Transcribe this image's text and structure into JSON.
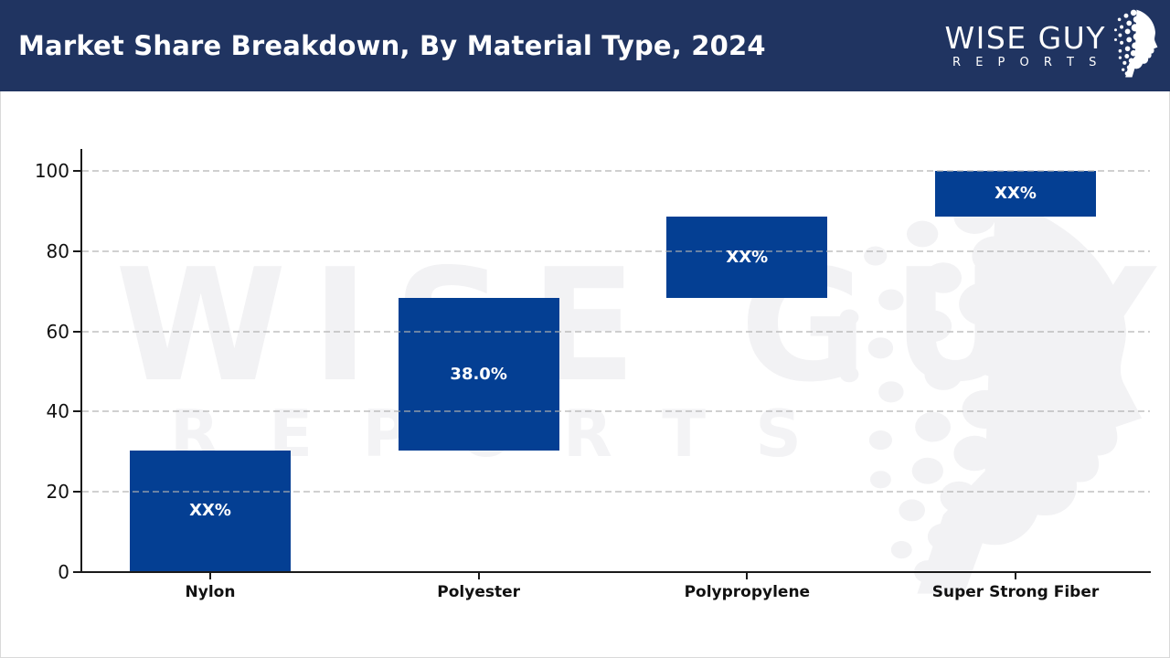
{
  "page": {
    "background": "#ffffff",
    "border_color": "#d9d9d9"
  },
  "header": {
    "bg_color": "#203461",
    "title": "Market Share Breakdown, By Material Type, 2024",
    "logo": {
      "name": "WISE GUY",
      "sub": "R E P O R T S"
    }
  },
  "watermark": {
    "line1": "WISE GUY",
    "line2": "R E P O R T S",
    "color": "#f2f2f4"
  },
  "chart_data": {
    "type": "bar",
    "subtype": "waterfall",
    "title": "Market Share Breakdown, By Material Type, 2024",
    "units": "%",
    "categories": [
      "Nylon",
      "Polyester",
      "Polypropylene",
      "Super Strong Fiber"
    ],
    "segments": [
      {
        "category": "Nylon",
        "start": 0,
        "end": 30.3,
        "increment": 30.3,
        "label": "XX%"
      },
      {
        "category": "Polyester",
        "start": 30.3,
        "end": 68.3,
        "increment": 38.0,
        "label": "38.0%"
      },
      {
        "category": "Polypropylene",
        "start": 68.3,
        "end": 88.5,
        "increment": 20.2,
        "label": "XX%"
      },
      {
        "category": "Super Strong Fiber",
        "start": 88.5,
        "end": 100,
        "increment": 11.5,
        "label": "XX%"
      }
    ],
    "yticks": [
      0,
      20,
      40,
      60,
      80,
      100
    ],
    "ylim": [
      0,
      105
    ],
    "grid": true,
    "grid_style": "dashed",
    "bar_color": "#043f93",
    "bar_label_color": "#ffffff",
    "axis_color": "#1a1a1a",
    "xlabel": "",
    "ylabel": ""
  }
}
